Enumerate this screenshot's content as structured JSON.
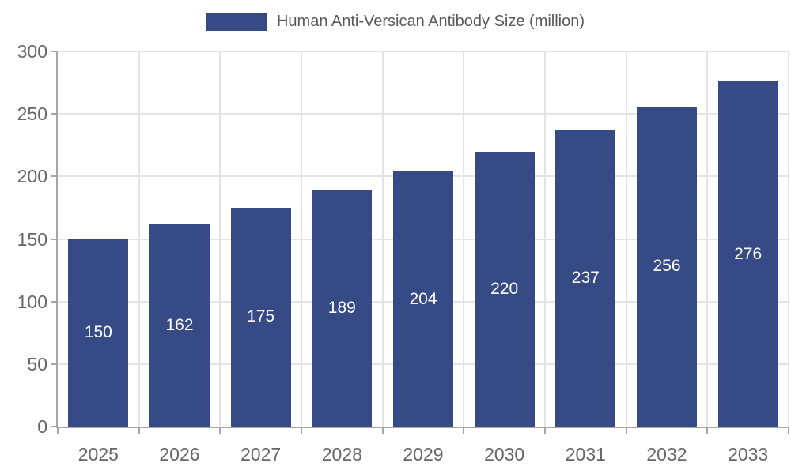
{
  "chart_data": {
    "type": "bar",
    "title": "Human Anti-Versican Antibody Size (million)",
    "categories": [
      "2025",
      "2026",
      "2027",
      "2028",
      "2029",
      "2030",
      "2031",
      "2032",
      "2033"
    ],
    "values": [
      150,
      162,
      175,
      189,
      204,
      220,
      237,
      256,
      276
    ],
    "xlabel": "",
    "ylabel": "",
    "ylim": [
      0,
      300
    ],
    "yticks": [
      0,
      50,
      100,
      150,
      200,
      250,
      300
    ],
    "grid": true,
    "legend_position": "top-center",
    "bar_color": "#364a85",
    "value_label_color": "#ffffff",
    "grid_color": "#e4e4e4",
    "axis_color": "#a6a6a6",
    "tick_label_color": "#666666",
    "legend_text_color": "#595959"
  }
}
